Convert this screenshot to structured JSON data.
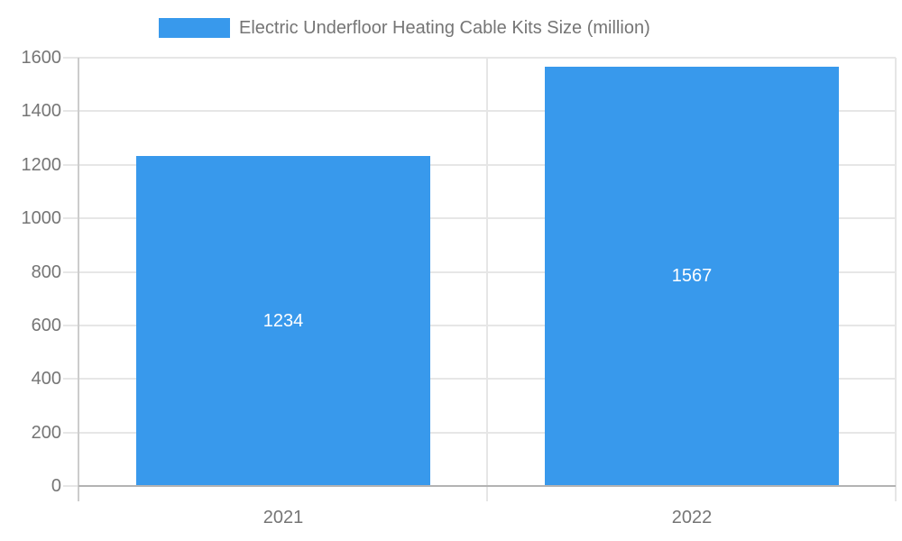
{
  "chart_data": {
    "type": "bar",
    "title": "Electric Underfloor Heating Cable Kits Size (million)",
    "categories": [
      "2021",
      "2022"
    ],
    "values": [
      1234,
      1567
    ],
    "xlabel": "",
    "ylabel": "",
    "ylim": [
      0,
      1600
    ],
    "ytick_step": 200,
    "ytick_labels": [
      "0",
      "200",
      "400",
      "600",
      "800",
      "1000",
      "1200",
      "1400",
      "1600"
    ],
    "legend_position": "top",
    "grid": true,
    "bar_color": "#3899EC",
    "value_label_color": "#ffffff",
    "axis_text_color": "#757575",
    "gridline_color": "#e6e6e6",
    "baseline_color": "#b3b3b3",
    "axis_line_color": "#cccccc"
  }
}
